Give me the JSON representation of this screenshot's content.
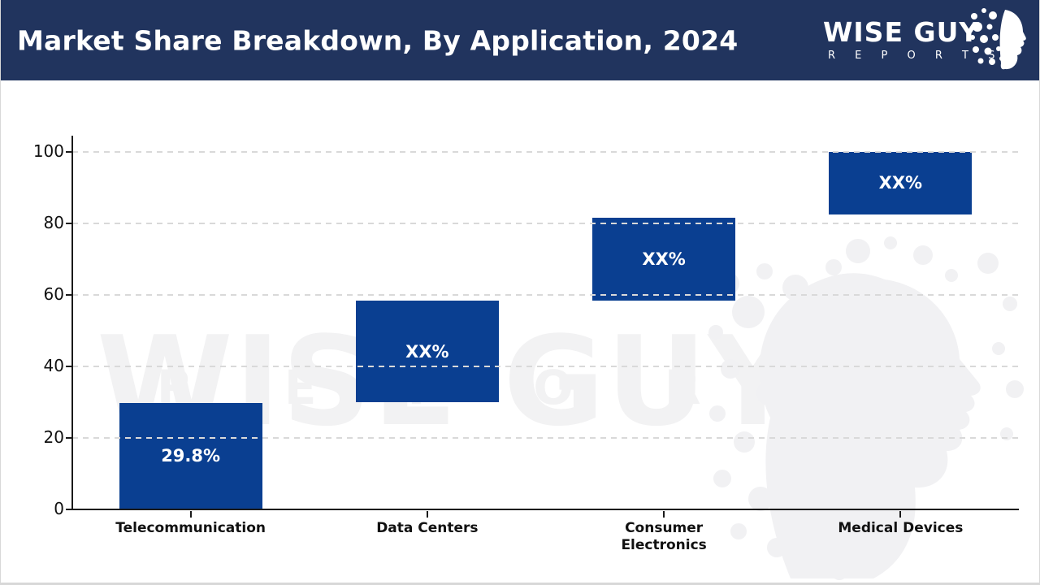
{
  "header": {
    "title": "Market Share Breakdown, By Application, 2024",
    "logo": {
      "line1": "WISE GUY",
      "line2": "R E P O R T S"
    }
  },
  "watermark": {
    "line1": "WISE GUY",
    "line2": "R E P O R T S"
  },
  "colors": {
    "header_bg": "#21345e",
    "bar_blue": "#0a3f91",
    "grid_gray": "#d9d9d9",
    "watermark_gray": "#f2f2f3",
    "axis_black": "#1a1a1a"
  },
  "chart_data": {
    "type": "bar",
    "subtype": "waterfall",
    "title": "Market Share Breakdown, By Application, 2024",
    "categories": [
      "Telecommunication",
      "Data Centers",
      "Consumer Electronics",
      "Medical Devices"
    ],
    "category_label_lines": [
      [
        "Telecommunication"
      ],
      [
        "Data Centers"
      ],
      [
        "Consumer",
        "Electronics"
      ],
      [
        "Medical Devices"
      ]
    ],
    "segments": [
      {
        "start": 0,
        "end": 29.8,
        "label": "29.8%"
      },
      {
        "start": 30,
        "end": 58.4,
        "label": "XX%"
      },
      {
        "start": 58.4,
        "end": 81.6,
        "label": "XX%"
      },
      {
        "start": 82.6,
        "end": 100,
        "label": "XX%"
      }
    ],
    "xlabel": "",
    "ylabel": "",
    "y_ticks": [
      0,
      20,
      40,
      60,
      80,
      100
    ],
    "ylim": [
      0,
      105
    ],
    "grid": "horizontal-dashed",
    "legend": "none",
    "bar_color": "#0a3f91",
    "value_label_color": "#ffffff"
  }
}
